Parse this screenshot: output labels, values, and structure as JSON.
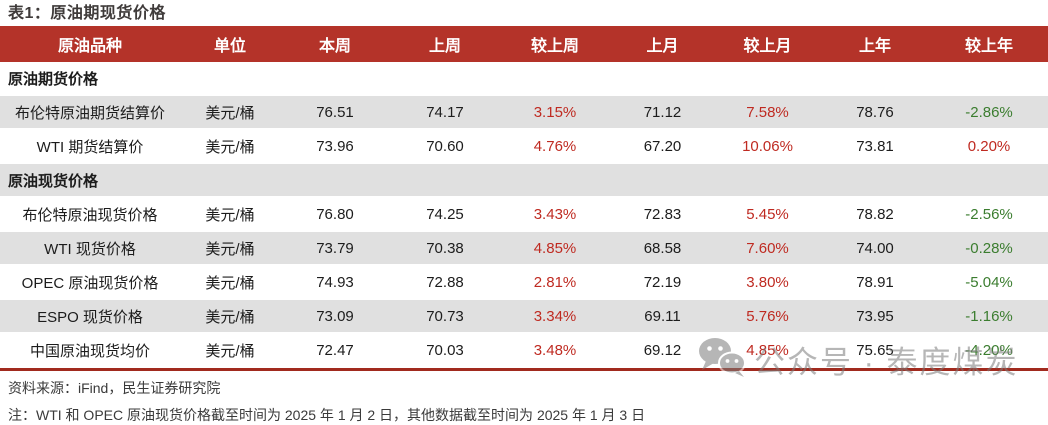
{
  "title": "表1：原油期现货价格",
  "colors": {
    "header_bg": "#b43329",
    "row_alt_bg": "#e0e0e0",
    "positive_change": "#bf2a21",
    "negative_change": "#3b7d2f",
    "bottom_border": "#a12a1e"
  },
  "table": {
    "columns": [
      "原油品种",
      "单位",
      "本周",
      "上周",
      "较上周",
      "上月",
      "较上月",
      "上年",
      "较上年"
    ],
    "sections": [
      {
        "label": "原油期货价格",
        "rows": [
          {
            "name": "布伦特原油期货结算价",
            "unit": "美元/桶",
            "values": [
              "76.51",
              "74.17",
              "3.15%",
              "71.12",
              "7.58%",
              "78.76",
              "-2.86%"
            ]
          },
          {
            "name": "WTI 期货结算价",
            "unit": "美元/桶",
            "values": [
              "73.96",
              "70.60",
              "4.76%",
              "67.20",
              "10.06%",
              "73.81",
              "0.20%"
            ]
          }
        ]
      },
      {
        "label": "原油现货价格",
        "rows": [
          {
            "name": "布伦特原油现货价格",
            "unit": "美元/桶",
            "values": [
              "76.80",
              "74.25",
              "3.43%",
              "72.83",
              "5.45%",
              "78.82",
              "-2.56%"
            ]
          },
          {
            "name": "WTI 现货价格",
            "unit": "美元/桶",
            "values": [
              "73.79",
              "70.38",
              "4.85%",
              "68.58",
              "7.60%",
              "74.00",
              "-0.28%"
            ]
          },
          {
            "name": "OPEC 原油现货价格",
            "unit": "美元/桶",
            "values": [
              "74.93",
              "72.88",
              "2.81%",
              "72.19",
              "3.80%",
              "78.91",
              "-5.04%"
            ]
          },
          {
            "name": "ESPO 现货价格",
            "unit": "美元/桶",
            "values": [
              "73.09",
              "70.73",
              "3.34%",
              "69.11",
              "5.76%",
              "73.95",
              "-1.16%"
            ]
          },
          {
            "name": "中国原油现货均价",
            "unit": "美元/桶",
            "values": [
              "72.47",
              "70.03",
              "3.48%",
              "69.12",
              "4.85%",
              "75.65",
              "-4.20%"
            ]
          }
        ]
      }
    ]
  },
  "footer": {
    "source": "资料来源：iFind，民生证券研究院",
    "note": "注：WTI 和 OPEC 原油现货价格截至时间为 2025 年 1 月 2 日，其他数据截至时间为 2025 年 1 月 3 日"
  },
  "watermark": {
    "icon": "wechat-icon",
    "text": "公众号 · 泰度煤炭"
  }
}
